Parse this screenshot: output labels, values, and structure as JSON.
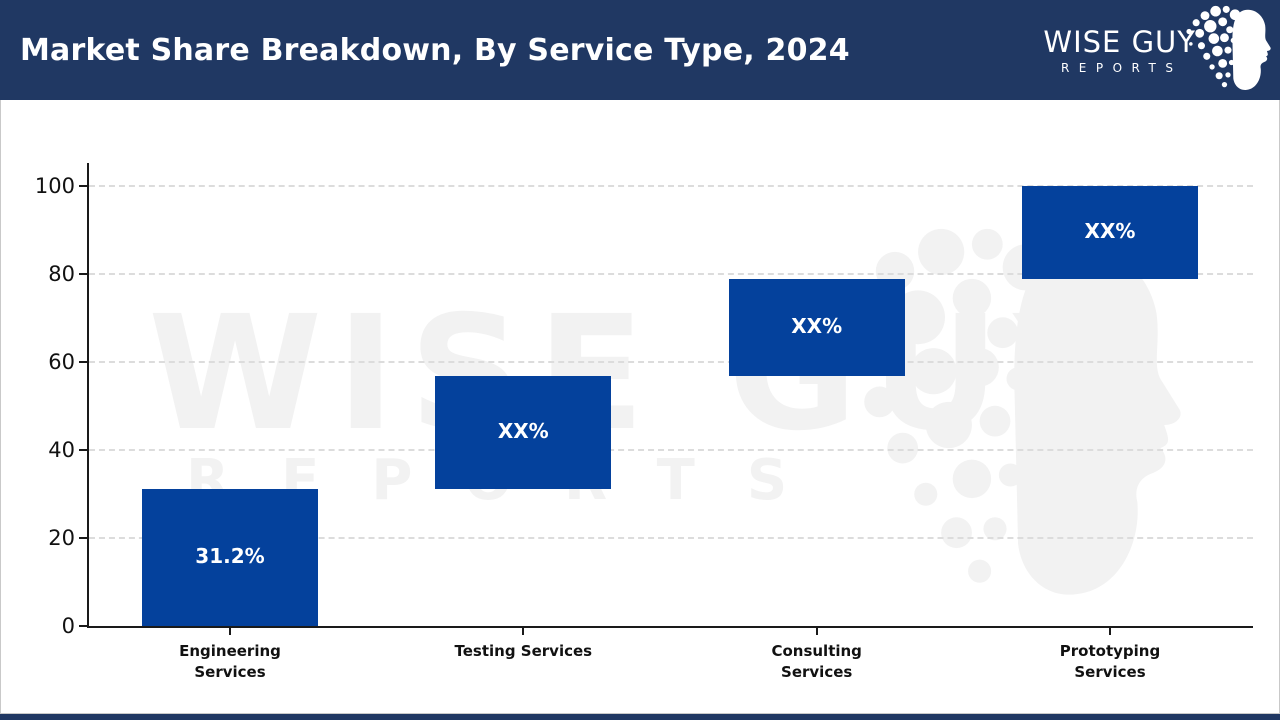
{
  "header": {
    "title": "Market Share Breakdown, By Service Type, 2024",
    "logo": {
      "name": "WISE GUY",
      "tagline": "REPORTS"
    }
  },
  "watermark": {
    "line1": "WISE GUY",
    "line2": "REPORTS"
  },
  "chart_data": {
    "type": "bar",
    "subtype": "waterfall-floating-bars",
    "title": "Market Share Breakdown, By Service Type, 2024",
    "xlabel": "",
    "ylabel": "",
    "ylim": [
      0,
      106
    ],
    "yticks": [
      0,
      20,
      40,
      60,
      80,
      100
    ],
    "grid": "horizontal-dashed",
    "legend": "none",
    "bar_color": "#04419c",
    "categories": [
      "Engineering\nServices",
      "Testing Services",
      "Consulting\nServices",
      "Prototyping\nServices"
    ],
    "bars": [
      {
        "category": "Engineering Services",
        "start": 0,
        "end": 31.2,
        "label": "31.2%"
      },
      {
        "category": "Testing Services",
        "start": 31.2,
        "end": 56.8,
        "label": "XX%"
      },
      {
        "category": "Consulting Services",
        "start": 56.8,
        "end": 78.9,
        "label": "XX%"
      },
      {
        "category": "Prototyping Services",
        "start": 78.9,
        "end": 100,
        "label": "XX%"
      }
    ]
  },
  "colors": {
    "header_bg": "#203863",
    "bar": "#04419c",
    "watermark": "#f2f2f2",
    "gridline": "#dcdcdc"
  }
}
